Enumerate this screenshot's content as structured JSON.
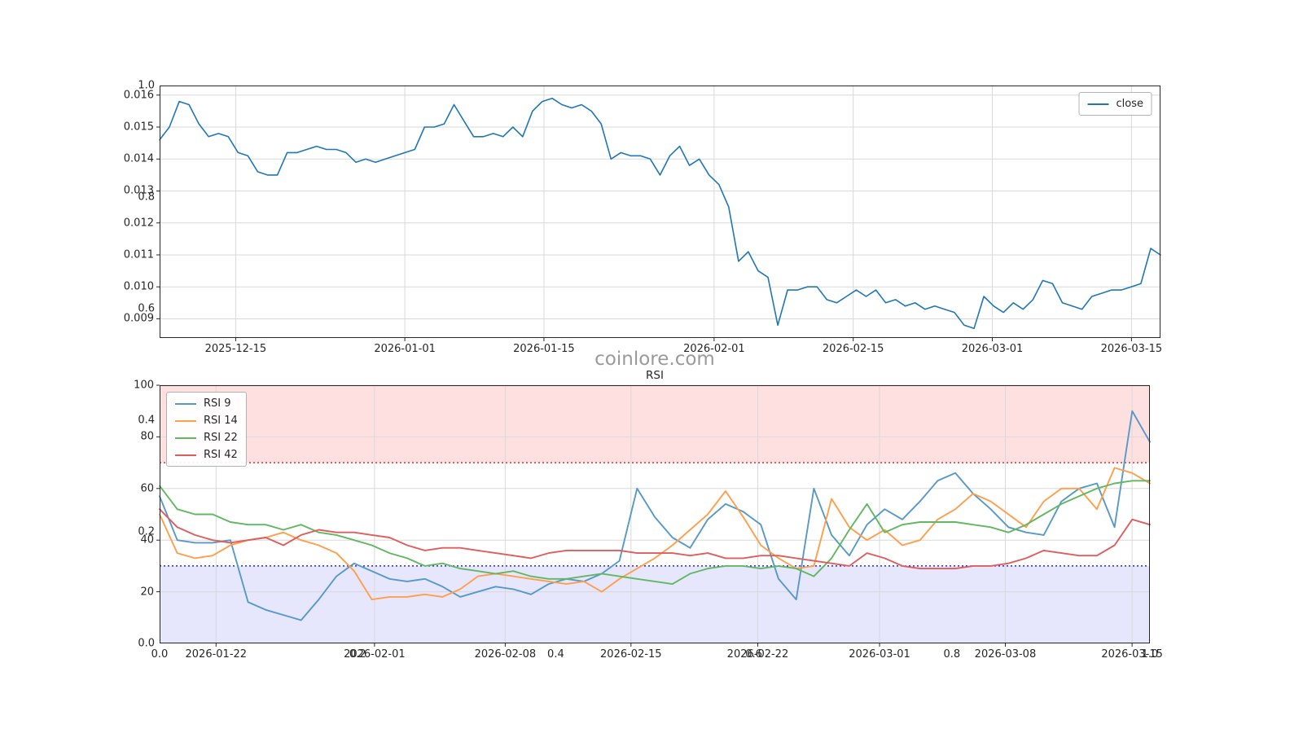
{
  "watermark": "coinlore.com",
  "style": {
    "background": "#ffffff",
    "grid_color": "#d9d9d9",
    "spine_color": "#262626",
    "tick_text_color": "#262626",
    "watermark_color": "#9a9a9a"
  },
  "overlay_axis": {
    "yticks": [
      {
        "label": "1.0",
        "pos": 0.0
      },
      {
        "label": "0.8",
        "pos": 0.2
      },
      {
        "label": "0.6",
        "pos": 0.4
      },
      {
        "label": "0.4",
        "pos": 0.6
      },
      {
        "label": "0.2",
        "pos": 0.8
      },
      {
        "label": "0.0",
        "pos": 1.0
      }
    ],
    "xticks": [
      {
        "label": "0.0",
        "pos": 0.0
      },
      {
        "label": "0.2",
        "pos": 0.2
      },
      {
        "label": "0.4",
        "pos": 0.4
      },
      {
        "label": "0.6",
        "pos": 0.6
      },
      {
        "label": "0.8",
        "pos": 0.8
      },
      {
        "label": "1.0",
        "pos": 1.0
      }
    ]
  },
  "chart_data": [
    {
      "id": "price",
      "type": "line",
      "title": "",
      "grid": true,
      "legend_position": "top-right",
      "ylim": [
        0.0084,
        0.0163
      ],
      "yticks": [
        {
          "label": "0.016",
          "value": 0.016
        },
        {
          "label": "0.015",
          "value": 0.015
        },
        {
          "label": "0.014",
          "value": 0.014
        },
        {
          "label": "0.013",
          "value": 0.013
        },
        {
          "label": "0.012",
          "value": 0.012
        },
        {
          "label": "0.011",
          "value": 0.011
        },
        {
          "label": "0.010",
          "value": 0.01
        },
        {
          "label": "0.009",
          "value": 0.009
        }
      ],
      "xticks": [
        {
          "label": "2025-12-15",
          "pos": 0.076
        },
        {
          "label": "2026-01-01",
          "pos": 0.245
        },
        {
          "label": "2026-01-15",
          "pos": 0.384
        },
        {
          "label": "2026-02-01",
          "pos": 0.554
        },
        {
          "label": "2026-02-15",
          "pos": 0.693
        },
        {
          "label": "2026-03-01",
          "pos": 0.832
        },
        {
          "label": "2026-03-15",
          "pos": 0.971
        }
      ],
      "series": [
        {
          "name": "close",
          "color": "#1f77b4",
          "values": [
            0.0146,
            0.015,
            0.0158,
            0.0157,
            0.0151,
            0.0147,
            0.0148,
            0.0147,
            0.0142,
            0.0141,
            0.0136,
            0.0135,
            0.0135,
            0.0142,
            0.0142,
            0.0143,
            0.0144,
            0.0143,
            0.0143,
            0.0142,
            0.0139,
            0.014,
            0.0139,
            0.014,
            0.0141,
            0.0142,
            0.0143,
            0.015,
            0.015,
            0.0151,
            0.0157,
            0.0152,
            0.0147,
            0.0147,
            0.0148,
            0.0147,
            0.015,
            0.0147,
            0.0155,
            0.0158,
            0.0159,
            0.0157,
            0.0156,
            0.0157,
            0.0155,
            0.0151,
            0.014,
            0.0142,
            0.0141,
            0.0141,
            0.014,
            0.0135,
            0.0141,
            0.0144,
            0.0138,
            0.014,
            0.0135,
            0.0132,
            0.0125,
            0.0108,
            0.0111,
            0.0105,
            0.0103,
            0.0088,
            0.0099,
            0.0099,
            0.01,
            0.01,
            0.0096,
            0.0095,
            0.0097,
            0.0099,
            0.0097,
            0.0099,
            0.0095,
            0.0096,
            0.0094,
            0.0095,
            0.0093,
            0.0094,
            0.0093,
            0.0092,
            0.0088,
            0.0087,
            0.0097,
            0.0094,
            0.0092,
            0.0095,
            0.0093,
            0.0096,
            0.0102,
            0.0101,
            0.0095,
            0.0094,
            0.0093,
            0.0097,
            0.0098,
            0.0099,
            0.0099,
            0.01,
            0.0101,
            0.0112,
            0.011
          ]
        }
      ]
    },
    {
      "id": "rsi",
      "type": "line",
      "title": "RSI",
      "grid": true,
      "legend_position": "top-left",
      "ylim": [
        0,
        100
      ],
      "yticks": [
        {
          "label": "100",
          "value": 100
        },
        {
          "label": "80",
          "value": 80
        },
        {
          "label": "60",
          "value": 60
        },
        {
          "label": "40",
          "value": 40
        },
        {
          "label": "20",
          "value": 20
        }
      ],
      "xticks": [
        {
          "label": "2026-01-22",
          "pos": 0.057
        },
        {
          "label": "2026-02-01",
          "pos": 0.217
        },
        {
          "label": "2026-02-08",
          "pos": 0.349
        },
        {
          "label": "2026-02-15",
          "pos": 0.476
        },
        {
          "label": "2026-02-22",
          "pos": 0.604
        },
        {
          "label": "2026-03-01",
          "pos": 0.727
        },
        {
          "label": "2026-03-08",
          "pos": 0.854
        },
        {
          "label": "2026-03-15",
          "pos": 0.982
        }
      ],
      "bands": [
        {
          "from": 70,
          "to": 100,
          "color": "rgba(255,0,0,0.12)"
        },
        {
          "from": 0,
          "to": 30,
          "color": "rgba(60,60,230,0.13)"
        }
      ],
      "hlines": [
        {
          "value": 70,
          "color": "#e60000",
          "dash": "dotted"
        },
        {
          "value": 30,
          "color": "#0000b8",
          "dash": "dotted"
        }
      ],
      "series": [
        {
          "name": "RSI 9",
          "color": "#5799c7",
          "values": [
            57,
            40,
            39,
            39,
            40,
            16,
            13,
            11,
            9,
            17,
            26,
            31,
            28,
            25,
            24,
            25,
            22,
            18,
            20,
            22,
            21,
            19,
            23,
            25,
            24,
            27,
            32,
            60,
            49,
            41,
            37,
            48,
            54,
            51,
            46,
            25,
            17,
            60,
            42,
            34,
            46,
            52,
            48,
            55,
            63,
            66,
            58,
            52,
            45,
            43,
            42,
            55,
            60,
            62,
            45,
            90,
            78
          ]
        },
        {
          "name": "RSI 14",
          "color": "#ff9f4b",
          "values": [
            50,
            35,
            33,
            34,
            38,
            40,
            41,
            43,
            40,
            38,
            35,
            28,
            17,
            18,
            18,
            19,
            18,
            21,
            26,
            27,
            26,
            25,
            24,
            23,
            24,
            20,
            25,
            29,
            33,
            38,
            44,
            50,
            59,
            49,
            38,
            33,
            29,
            30,
            56,
            45,
            40,
            44,
            38,
            40,
            48,
            52,
            58,
            55,
            50,
            45,
            55,
            60,
            60,
            52,
            68,
            66,
            62
          ]
        },
        {
          "name": "RSI 22",
          "color": "#61b861",
          "values": [
            61,
            52,
            50,
            50,
            47,
            46,
            46,
            44,
            46,
            43,
            42,
            40,
            38,
            35,
            33,
            30,
            31,
            29,
            28,
            27,
            28,
            26,
            25,
            25,
            26,
            27,
            26,
            25,
            24,
            23,
            27,
            29,
            30,
            30,
            29,
            30,
            29,
            26,
            33,
            44,
            54,
            43,
            46,
            47,
            47,
            47,
            46,
            45,
            43,
            46,
            50,
            54,
            57,
            60,
            62,
            63,
            63
          ]
        },
        {
          "name": "RSI 42",
          "color": "#e05d5e",
          "values": [
            52,
            45,
            42,
            40,
            39,
            40,
            41,
            38,
            42,
            44,
            43,
            43,
            42,
            41,
            38,
            36,
            37,
            37,
            36,
            35,
            34,
            33,
            35,
            36,
            36,
            36,
            36,
            35,
            35,
            35,
            34,
            35,
            33,
            33,
            34,
            34,
            33,
            32,
            31,
            30,
            35,
            33,
            30,
            29,
            29,
            29,
            30,
            30,
            31,
            33,
            36,
            35,
            34,
            34,
            38,
            48,
            46
          ]
        }
      ]
    }
  ]
}
